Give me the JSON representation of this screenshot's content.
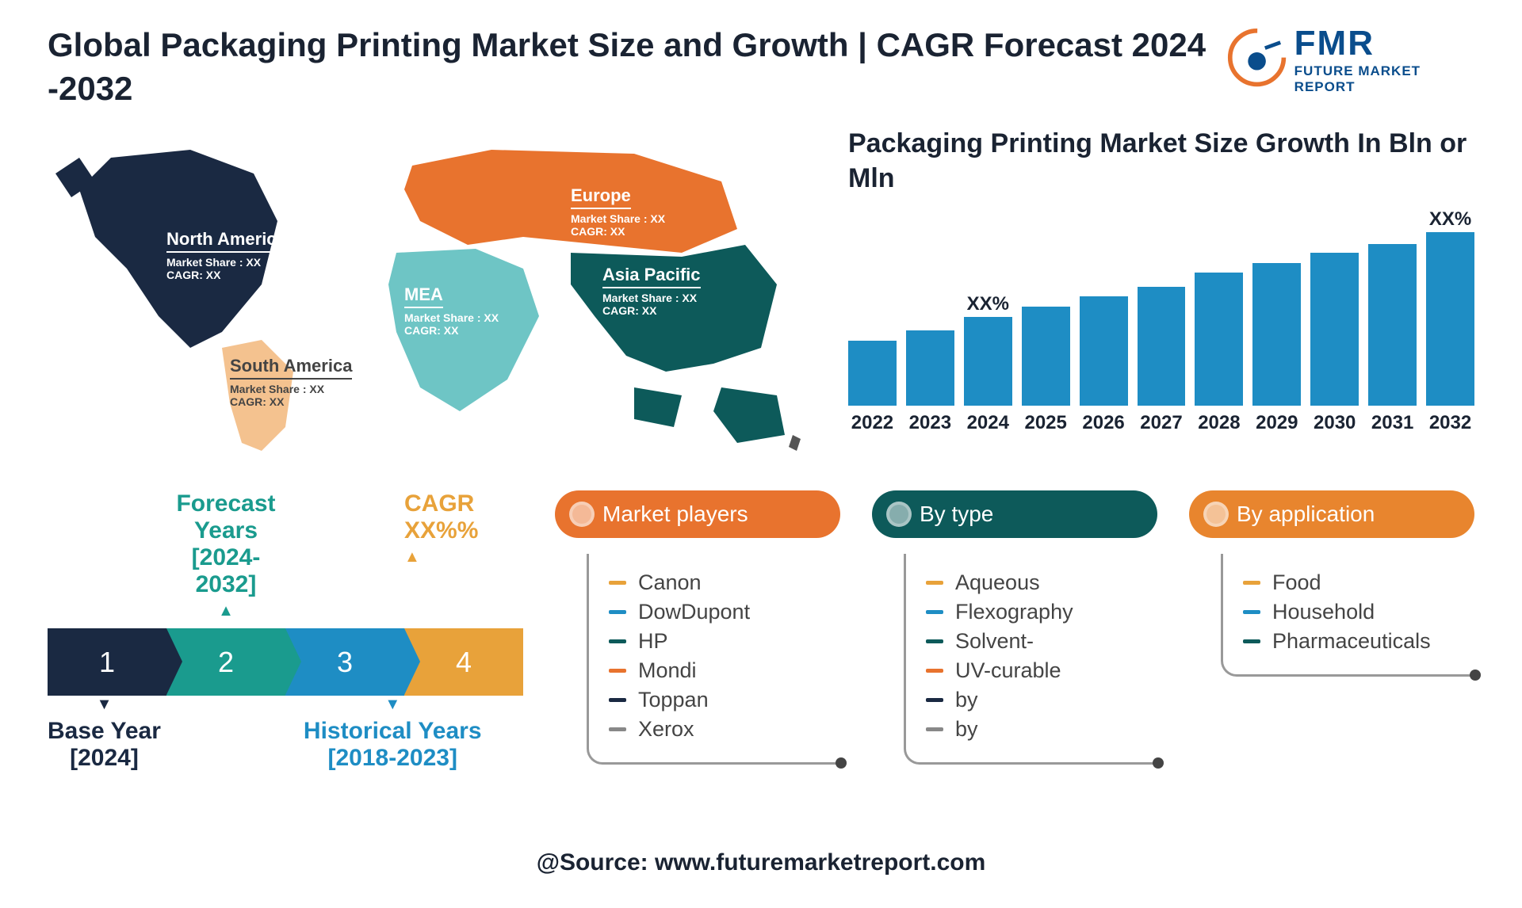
{
  "title": "Global Packaging Printing  Market Size and Growth | CAGR Forecast 2024 -2032",
  "logo": {
    "main": "FMR",
    "sub": "FUTURE MARKET REPORT"
  },
  "map": {
    "regions": [
      {
        "name": "North America",
        "share": "Market Share : XX",
        "cagr": "CAGR: XX",
        "color": "#1a2942"
      },
      {
        "name": "South America",
        "share": "Market Share : XX",
        "cagr": "CAGR: XX",
        "color": "#f4c28f"
      },
      {
        "name": "Europe",
        "share": "Market Share : XX",
        "cagr": "CAGR: XX",
        "color": "#e8732e"
      },
      {
        "name": "MEA",
        "share": "Market Share : XX",
        "cagr": "CAGR: XX",
        "color": "#6ec5c5"
      },
      {
        "name": "Asia Pacific",
        "share": "Market Share : XX",
        "cagr": "CAGR: XX",
        "color": "#0d5a5a"
      }
    ]
  },
  "chart": {
    "title": "Packaging Printing  Market Size Growth In Bln or Mln",
    "type": "bar",
    "categories": [
      "2022",
      "2023",
      "2024",
      "2025",
      "2026",
      "2027",
      "2028",
      "2029",
      "2030",
      "2031",
      "2032"
    ],
    "values": [
      95,
      110,
      130,
      145,
      160,
      175,
      195,
      210,
      225,
      238,
      255
    ],
    "bar_color": "#1e8dc4",
    "annotations": [
      {
        "index": 2,
        "text": "XX%"
      },
      {
        "index": 10,
        "text": "XX%"
      }
    ],
    "label_fontsize": 24,
    "max": 280
  },
  "timeline": {
    "top": [
      {
        "title": "Forecast Years",
        "sub": "[2024-2032]",
        "color": "#1a9b8e",
        "ptr": "▲",
        "seg": 1
      },
      {
        "title": "CAGR",
        "sub": "XX%%",
        "color": "#e8a23a",
        "ptr": "▲",
        "seg": 3
      }
    ],
    "segs": [
      "1",
      "2",
      "3",
      "4"
    ],
    "seg_colors": [
      "#1a2942",
      "#1a9b8e",
      "#1e8dc4",
      "#e8a23a"
    ],
    "bottom": [
      {
        "title": "Base Year",
        "sub": "[2024]",
        "color": "#1a2942",
        "ptr": "▼",
        "seg": 0
      },
      {
        "title": "Historical Years",
        "sub": "[2018-2023]",
        "color": "#1e8dc4",
        "ptr": "▼",
        "seg": 2
      }
    ]
  },
  "pills": {
    "players": {
      "title": "Market players",
      "color": "#e8732e",
      "items": [
        "Canon",
        "DowDupont",
        "HP",
        "Mondi",
        "Toppan",
        "Xerox"
      ]
    },
    "type": {
      "title": "By type",
      "color": "#0d5a5a",
      "items": [
        "Aqueous",
        "Flexography",
        "Solvent-",
        "UV-curable",
        "by",
        "by"
      ]
    },
    "application": {
      "title": "By application",
      "color": "#e8852e",
      "items": [
        "Food",
        "Household",
        "Pharmaceuticals"
      ]
    },
    "dash_colors": [
      "#e8a23a",
      "#1e8dc4",
      "#0d5a5a",
      "#e8732e",
      "#1a2942",
      "#888"
    ]
  },
  "source": "@Source: www.futuremarketreport.com"
}
